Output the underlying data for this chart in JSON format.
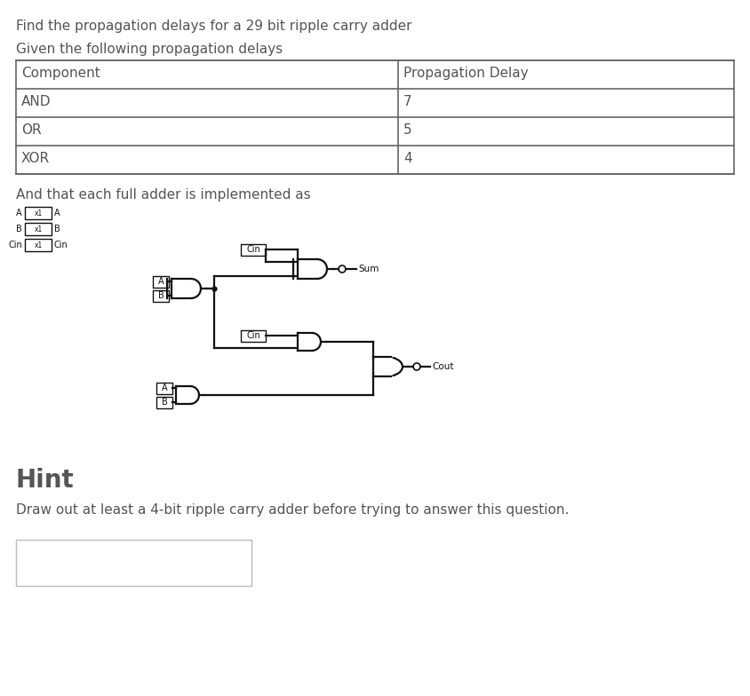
{
  "title1": "Find the propagation delays for a 29 bit ripple carry adder",
  "title2": "Given the following propagation delays",
  "table_headers": [
    "Component",
    "Propagation Delay"
  ],
  "table_rows": [
    [
      "AND",
      "7"
    ],
    [
      "OR",
      "5"
    ],
    [
      "XOR",
      "4"
    ]
  ],
  "adder_text": "And that each full adder is implemented as",
  "hint_title": "Hint",
  "hint_text": "Draw out at least a 4-bit ripple carry adder before trying to answer this question.",
  "bg_color": "#ffffff",
  "text_color": "#555555",
  "table_border_color": "#666666",
  "font_size_title": 11,
  "font_size_hint_title": 20
}
